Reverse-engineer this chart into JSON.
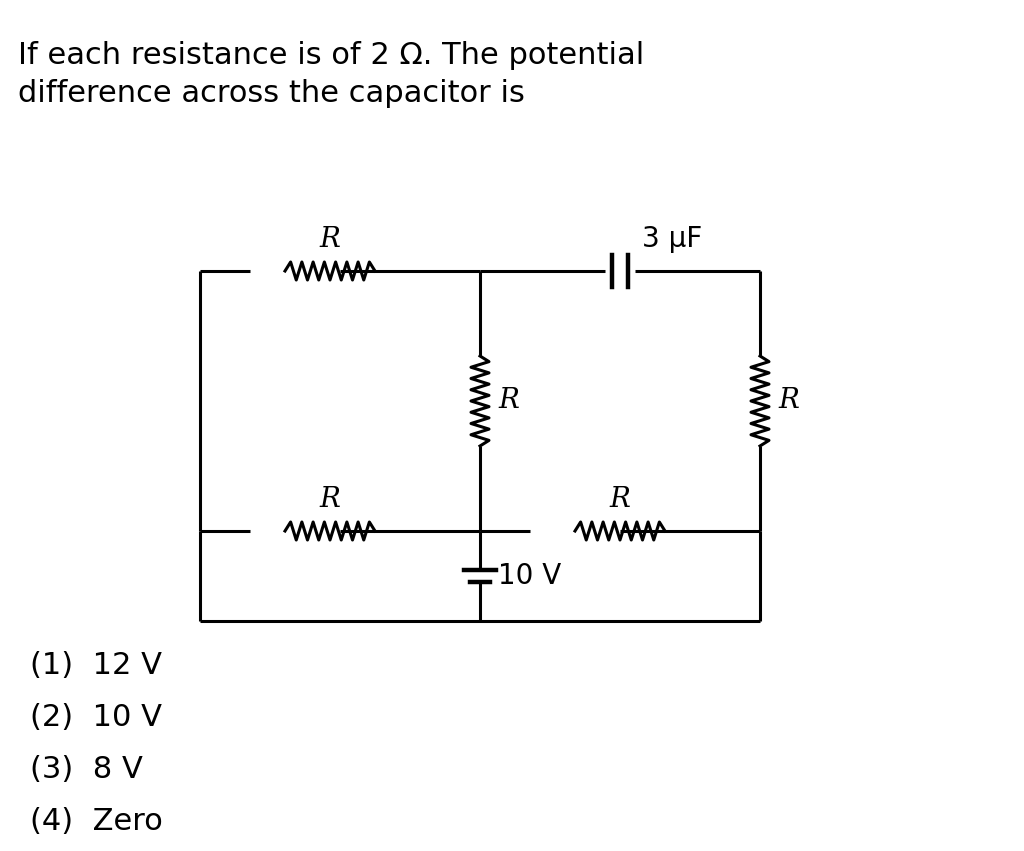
{
  "title": "If each resistance is of 2 Ω. The potential\ndifference across the capacitor is",
  "title_fontsize": 22,
  "options": [
    "(1)  12 V",
    "(2)  10 V",
    "(3)  8 V",
    "(4)  Zero"
  ],
  "options_fontsize": 22,
  "bg_color": "#ffffff",
  "line_color": "#000000",
  "lw": 2.2,
  "R_label": "R",
  "cap_label": "3 μF",
  "bat_label": "10 V",
  "font_size_labels": 20
}
